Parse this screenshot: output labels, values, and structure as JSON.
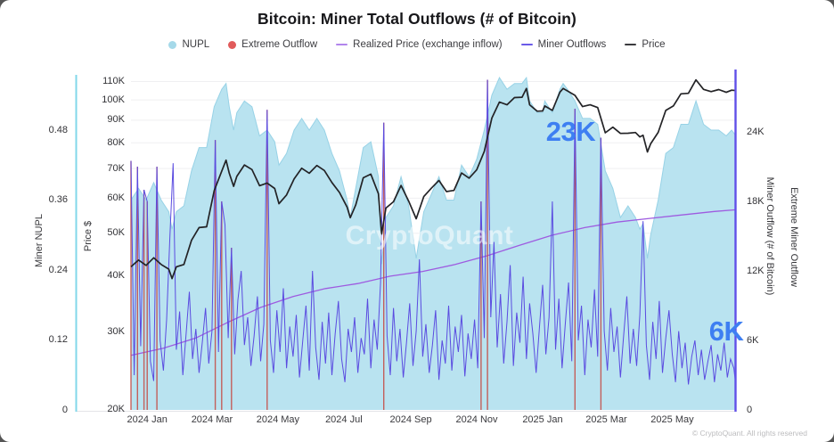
{
  "page": {
    "title": "Bitcoin: Miner Total Outflows (# of Bitcoin)",
    "watermark": "CryptoQuant",
    "copyright": "© CryptoQuant. All rights reserved"
  },
  "legend": [
    {
      "label": "NUPL",
      "marker": "dot",
      "color": "#a5d9e9"
    },
    {
      "label": "Extreme Outflow",
      "marker": "dot",
      "color": "#e15b5b"
    },
    {
      "label": "Realized Price (exchange inflow)",
      "marker": "line",
      "color": "#b285ec"
    },
    {
      "label": "Miner Outflows",
      "marker": "line",
      "color": "#6a5ae8"
    },
    {
      "label": "Price",
      "marker": "line",
      "color": "#3a3a3e"
    }
  ],
  "chart_data": {
    "type": "line",
    "title": "Bitcoin: Miner Total Outflows (# of Bitcoin)",
    "x_domain": {
      "start": "2023-12-17",
      "end": "2025-06-30",
      "days": 560
    },
    "x_ticks": [
      {
        "label": "2024 Jan",
        "day": 15
      },
      {
        "label": "2024 Mar",
        "day": 75
      },
      {
        "label": "2024 May",
        "day": 136
      },
      {
        "label": "2024 Jul",
        "day": 197
      },
      {
        "label": "2024 Sep",
        "day": 259
      },
      {
        "label": "2024 Nov",
        "day": 320
      },
      {
        "label": "2025 Jan",
        "day": 381
      },
      {
        "label": "2025 Mar",
        "day": 440
      },
      {
        "label": "2025 May",
        "day": 501
      }
    ],
    "axes": {
      "nupl": {
        "label": "Miner NUPL",
        "ticks": [
          "0",
          "0.12",
          "0.24",
          "0.36",
          "0.48"
        ],
        "tick_values": [
          0,
          0.12,
          0.24,
          0.36,
          0.48
        ],
        "range": [
          0,
          0.577
        ]
      },
      "price": {
        "label": "Price $",
        "scale": "log",
        "ticks": [
          "20K",
          "30K",
          "40K",
          "50K",
          "60K",
          "70K",
          "80K",
          "90K",
          "100K",
          "110K"
        ],
        "tick_values_usd": [
          20000,
          30000,
          40000,
          50000,
          60000,
          70000,
          80000,
          90000,
          100000,
          110000
        ]
      },
      "outflow": {
        "label": "Miner Outflow (# of Bitcoin)",
        "ticks": [
          "0",
          "6K",
          "12K",
          "18K",
          "24K"
        ],
        "tick_values_btc": [
          0,
          6000,
          12000,
          18000,
          24000
        ],
        "range_btc": [
          0,
          28900
        ]
      },
      "extreme": {
        "label": "Extreme Miner Outflow"
      }
    },
    "boundary_lines": {
      "left_color": "#82d7ea",
      "right_color": "#6050e8"
    },
    "series": {
      "x_days": [
        0,
        7,
        14,
        21,
        28,
        35,
        38,
        42,
        49,
        56,
        63,
        70,
        77,
        84,
        88,
        91,
        95,
        98,
        105,
        112,
        119,
        126,
        133,
        137,
        144,
        151,
        158,
        165,
        172,
        179,
        186,
        193,
        200,
        203,
        208,
        215,
        222,
        229,
        232,
        236,
        243,
        250,
        257,
        264,
        271,
        278,
        285,
        292,
        299,
        306,
        313,
        320,
        327,
        334,
        341,
        348,
        355,
        362,
        366,
        369,
        376,
        381,
        383,
        390,
        397,
        400,
        404,
        411,
        418,
        425,
        432,
        439,
        446,
        453,
        460,
        467,
        471,
        474,
        478,
        481,
        488,
        495,
        502,
        509,
        516,
        523,
        530,
        537,
        544,
        551,
        556,
        560
      ],
      "nupl": {
        "name": "NUPL",
        "type": "area",
        "color": "#b9e3f0",
        "values": [
          0.36,
          0.38,
          0.36,
          0.39,
          0.36,
          0.34,
          0.31,
          0.34,
          0.35,
          0.41,
          0.45,
          0.45,
          0.52,
          0.55,
          0.56,
          0.52,
          0.48,
          0.51,
          0.53,
          0.52,
          0.47,
          0.48,
          0.46,
          0.42,
          0.44,
          0.48,
          0.5,
          0.48,
          0.5,
          0.48,
          0.44,
          0.41,
          0.36,
          0.33,
          0.38,
          0.45,
          0.46,
          0.4,
          0.25,
          0.33,
          0.35,
          0.4,
          0.35,
          0.26,
          0.34,
          0.37,
          0.4,
          0.36,
          0.36,
          0.42,
          0.4,
          0.43,
          0.48,
          0.54,
          0.57,
          0.55,
          0.56,
          0.56,
          0.57,
          0.53,
          0.51,
          0.51,
          0.53,
          0.51,
          0.55,
          0.56,
          0.55,
          0.53,
          0.5,
          0.5,
          0.49,
          0.41,
          0.38,
          0.33,
          0.35,
          0.33,
          0.31,
          0.32,
          0.26,
          0.3,
          0.36,
          0.44,
          0.45,
          0.49,
          0.49,
          0.53,
          0.49,
          0.48,
          0.48,
          0.47,
          0.48,
          0.47
        ]
      },
      "price": {
        "name": "Price",
        "type": "line",
        "color": "#232326",
        "values_usd_k": [
          42.0,
          43.5,
          42.3,
          44.0,
          42.5,
          41.5,
          39.5,
          42.0,
          42.5,
          48.2,
          51.5,
          51.7,
          62.4,
          69.0,
          73.1,
          68.3,
          63.8,
          67.2,
          71.3,
          69.6,
          64.0,
          64.9,
          63.1,
          58.3,
          61.0,
          66.3,
          70.1,
          68.3,
          71.1,
          69.3,
          65.1,
          61.8,
          57.3,
          54.2,
          57.9,
          66.7,
          68.0,
          61.4,
          49.8,
          57.0,
          58.9,
          64.1,
          59.1,
          53.9,
          60.5,
          63.2,
          65.8,
          62.1,
          62.5,
          68.4,
          66.6,
          69.5,
          76.5,
          91.0,
          98.9,
          97.5,
          101.2,
          101.4,
          106.1,
          97.5,
          94.3,
          94.4,
          96.9,
          94.7,
          104.1,
          106.1,
          104.8,
          102.4,
          96.6,
          97.5,
          96.1,
          84.3,
          86.8,
          84.0,
          84.1,
          84.4,
          82.5,
          83.2,
          76.3,
          79.6,
          84.5,
          94.7,
          96.9,
          103.2,
          103.5,
          111.0,
          105.6,
          104.4,
          105.5,
          104.0,
          105.2,
          105.0
        ]
      },
      "realized_price": {
        "name": "Realized Price (exchange inflow)",
        "type": "line",
        "color": "#9e5be0",
        "x_days": [
          0,
          30,
          60,
          90,
          120,
          150,
          180,
          210,
          240,
          270,
          300,
          330,
          360,
          390,
          420,
          450,
          480,
          510,
          540,
          560
        ],
        "values_usd_k": [
          26.5,
          27.5,
          29.0,
          31.5,
          34.0,
          36.0,
          37.5,
          38.5,
          40.0,
          41.0,
          42.5,
          44.5,
          47.0,
          49.5,
          51.5,
          53.0,
          54.0,
          55.0,
          56.0,
          56.5
        ]
      },
      "miner_outflows": {
        "name": "Miner Outflows",
        "type": "line",
        "color": "#5a4be0",
        "x_step_days": 3,
        "values_btc_k": [
          21.5,
          3.0,
          21.0,
          5.5,
          19.0,
          18.0,
          4.2,
          2.5,
          21.0,
          6.0,
          3.4,
          7.8,
          15.0,
          21.3,
          5.2,
          8.5,
          3.0,
          6.5,
          10.2,
          4.4,
          7.0,
          3.2,
          5.8,
          8.8,
          4.0,
          6.8,
          23.3,
          5.0,
          18.0,
          16.0,
          6.2,
          14.0,
          4.8,
          9.5,
          12.0,
          5.6,
          8.0,
          3.8,
          6.4,
          9.8,
          4.2,
          7.4,
          25.9,
          6.0,
          3.2,
          8.6,
          5.0,
          10.5,
          3.6,
          7.2,
          4.6,
          8.2,
          2.8,
          6.0,
          9.0,
          3.4,
          12.0,
          5.4,
          2.6,
          7.6,
          4.0,
          8.4,
          3.0,
          6.6,
          9.4,
          4.4,
          2.4,
          7.0,
          5.0,
          8.0,
          3.2,
          6.2,
          4.8,
          9.6,
          3.6,
          7.8,
          5.2,
          11.0,
          24.8,
          6.4,
          3.0,
          8.8,
          4.2,
          7.0,
          2.8,
          5.8,
          9.2,
          3.8,
          6.8,
          13.0,
          4.6,
          7.4,
          3.2,
          5.6,
          8.6,
          2.6,
          6.0,
          4.0,
          9.0,
          3.4,
          7.2,
          5.0,
          8.2,
          2.9,
          6.6,
          4.4,
          7.8,
          3.6,
          18.0,
          6.2,
          28.5,
          8.0,
          14.5,
          5.4,
          10.0,
          4.0,
          7.6,
          12.5,
          3.8,
          8.4,
          5.8,
          11.5,
          4.4,
          9.2,
          6.6,
          3.2,
          7.0,
          10.8,
          4.8,
          8.0,
          18.0,
          5.2,
          9.6,
          3.6,
          7.4,
          11.0,
          4.2,
          26.0,
          6.0,
          9.0,
          3.0,
          7.8,
          5.4,
          10.4,
          4.6,
          23.5,
          6.8,
          3.4,
          8.8,
          5.0,
          7.2,
          2.8,
          6.4,
          9.8,
          4.0,
          7.0,
          3.8,
          8.2,
          16.3,
          5.6,
          2.6,
          7.6,
          4.4,
          9.4,
          3.2,
          6.2,
          8.6,
          4.8,
          2.4,
          6.8,
          3.6,
          5.8,
          2.2,
          4.6,
          6.0,
          3.0,
          5.2,
          2.6,
          4.2,
          5.6,
          2.4,
          4.8,
          3.4,
          5.8,
          2.8,
          4.4,
          3.6,
          2.0
        ]
      },
      "extreme_outflow": {
        "name": "Extreme Outflow",
        "type": "event-lines",
        "color": "#c4504a",
        "events_day_btc_k": [
          [
            0,
            21.5
          ],
          [
            6,
            21.0
          ],
          [
            12,
            19.0
          ],
          [
            15,
            18.0
          ],
          [
            24,
            21.0
          ],
          [
            78,
            23.3
          ],
          [
            84,
            18.0
          ],
          [
            93,
            14.0
          ],
          [
            126,
            25.9
          ],
          [
            234,
            24.8
          ],
          [
            324,
            18.0
          ],
          [
            330,
            28.5
          ],
          [
            411,
            26.0
          ],
          [
            435,
            23.5
          ]
        ]
      }
    },
    "annotations": [
      {
        "text": "23K",
        "color": "#3e7ff2",
        "day": 407,
        "btc_k": 24.0
      },
      {
        "text": "6K",
        "color": "#3e7ff2",
        "day": 551,
        "btc_k": 6.8
      }
    ],
    "legend_position": "top",
    "grid": "faint-horizontal"
  }
}
